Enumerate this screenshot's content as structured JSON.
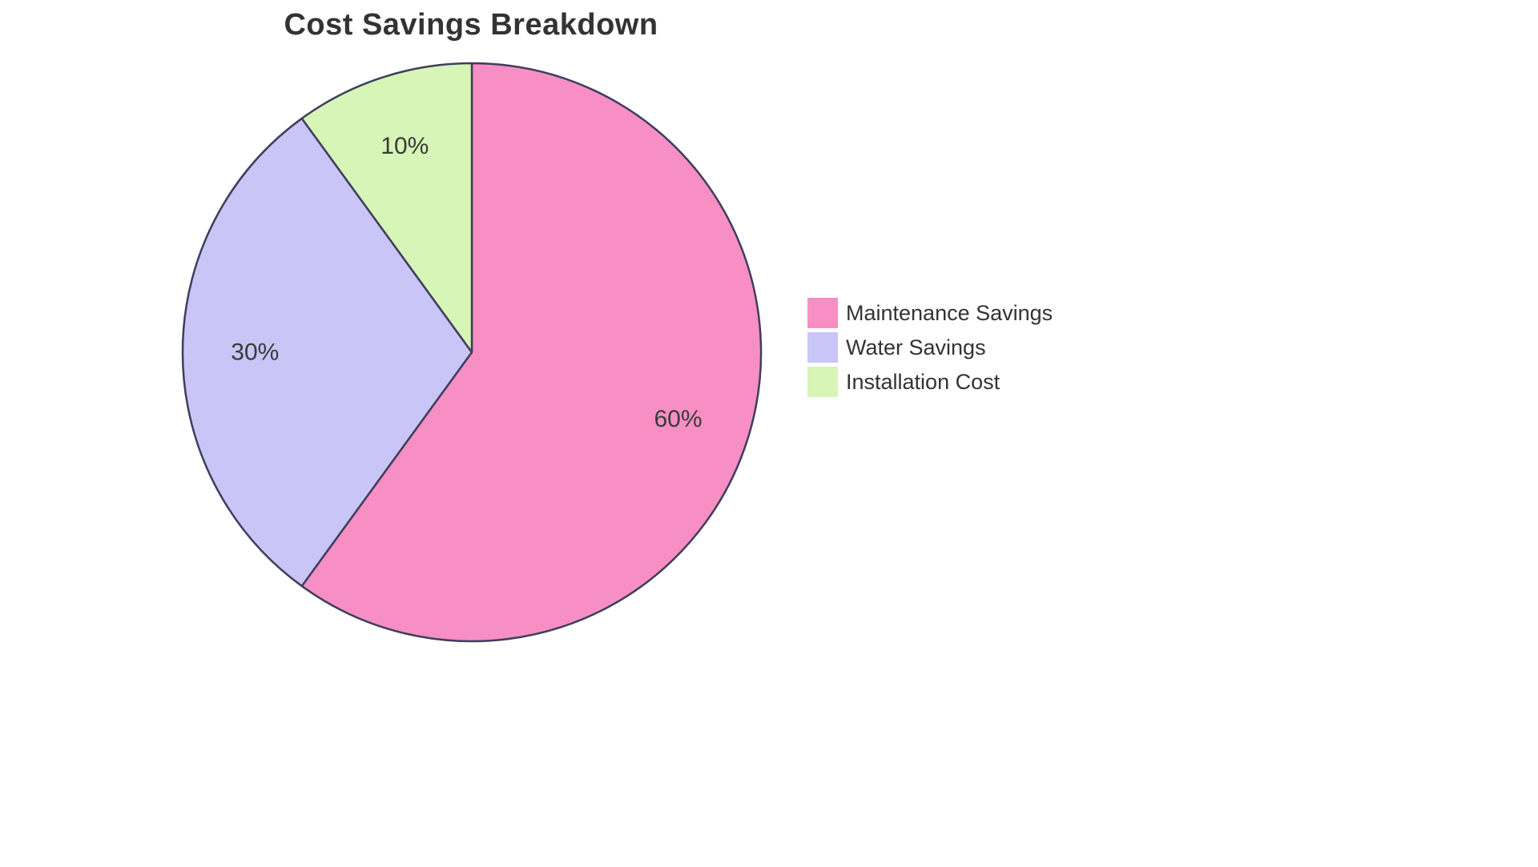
{
  "chart_data": {
    "type": "pie",
    "title": "Cost Savings Breakdown",
    "labels": [
      "Maintenance Savings",
      "Water Savings",
      "Installation Cost"
    ],
    "values": [
      60,
      30,
      10
    ],
    "value_labels": [
      "60%",
      "30%",
      "10%"
    ],
    "colors": [
      "#F78FC5",
      "#C9C5F6",
      "#D6F5B6"
    ],
    "stroke_color": "#3E3E5C",
    "text_color": "#333333",
    "start_angle": "top",
    "direction": "clockwise",
    "legend_position": "right"
  }
}
